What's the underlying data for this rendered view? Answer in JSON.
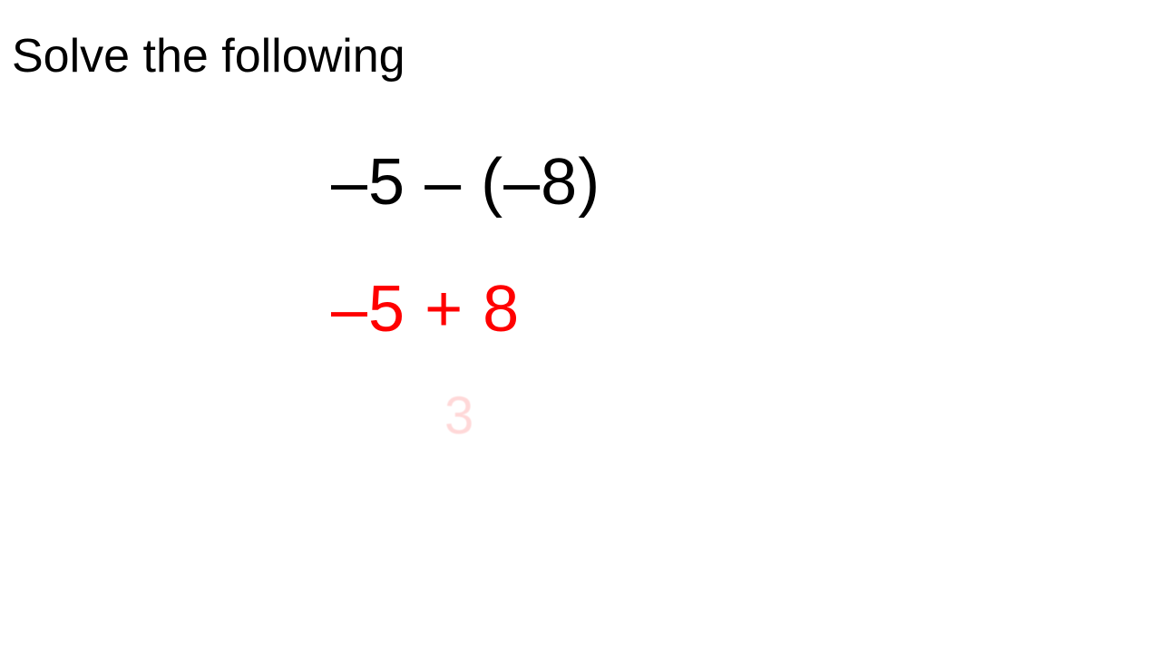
{
  "heading": {
    "text": "Solve the following",
    "color": "#000000",
    "fontsize": 52
  },
  "lines": {
    "line1": {
      "text": "–5 – (–8)",
      "color": "#000000",
      "fontsize": 72
    },
    "line2": {
      "text": "–5 + 8",
      "color": "#ff0000",
      "fontsize": 72
    },
    "line3": {
      "text": "3",
      "color": "#ff0000",
      "fontsize": 58,
      "opacity": 0.15
    }
  },
  "background_color": "#ffffff"
}
